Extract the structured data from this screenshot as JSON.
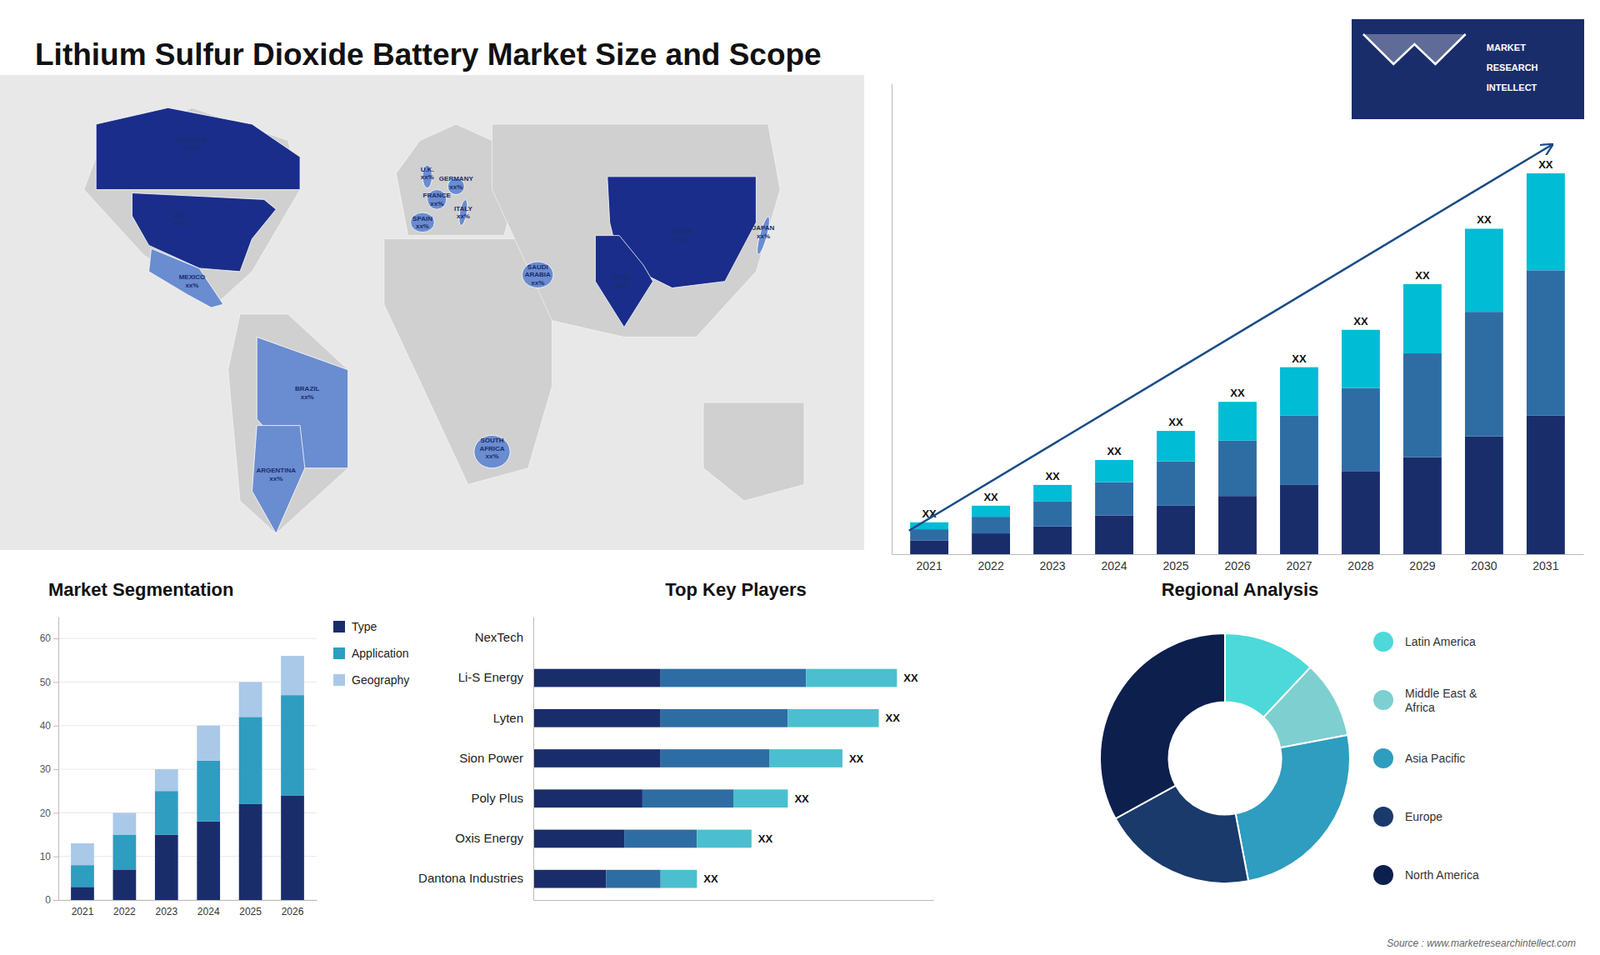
{
  "title": "Lithium Sulfur Dioxide Battery Market Size and Scope",
  "annotations": [
    "Source : www.marketresearchintellect.com",
    "MARKET",
    "RESEARCH",
    "INTELLECT"
  ],
  "chart_data": [
    {
      "type": "map",
      "categories": [
        "CANADA",
        "U.S.",
        "MEXICO",
        "BRAZIL",
        "ARGENTINA",
        "U.K.",
        "FRANCE",
        "SPAIN",
        "GERMANY",
        "ITALY",
        "SAUDI\nARABIA",
        "SOUTH\nAFRICA",
        "CHINA",
        "JAPAN",
        "INDIA"
      ],
      "colors": [
        "#1a2d8a",
        "#1a2d8a",
        "#6a8cd0",
        "#6a8cd0",
        "#6a8cd0",
        "#6a8cd0",
        "#6a8cd0",
        "#6a8cd0",
        "#6a8cd0",
        "#6a8cd0",
        "#6a8cd0",
        "#6a8cd0",
        "#1a2d8a",
        "#6a8cd0",
        "#1a2d8a"
      ],
      "annotations": [
        "xx%",
        "xx%",
        "xx%",
        "xx%",
        "xx%",
        "xx%",
        "xx%",
        "xx%",
        "xx%",
        "xx%",
        "xx%",
        "xx%",
        "xx%",
        "xx%",
        "xx%"
      ]
    },
    {
      "type": "bar",
      "stacked": true,
      "categories": [
        "2021",
        "2022",
        "2023",
        "2024",
        "2025",
        "2026",
        "2027",
        "2028",
        "2029",
        "2030",
        "2031"
      ],
      "series": [
        {
          "color": "#1a2d6b",
          "values": [
            1.0,
            1.5,
            2.0,
            2.8,
            3.5,
            4.2,
            5.0,
            6.0,
            7.0,
            8.5,
            10.0
          ]
        },
        {
          "color": "#2e6da4",
          "values": [
            0.8,
            1.2,
            1.8,
            2.4,
            3.2,
            4.0,
            5.0,
            6.0,
            7.5,
            9.0,
            10.5
          ]
        },
        {
          "color": "#00bcd4",
          "values": [
            0.5,
            0.8,
            1.2,
            1.6,
            2.2,
            2.8,
            3.5,
            4.2,
            5.0,
            6.0,
            7.0
          ]
        }
      ],
      "ylim": [
        0,
        34
      ],
      "tick_labels": "x",
      "annotations": [
        "XX",
        "XX",
        "XX",
        "XX",
        "XX",
        "XX",
        "XX",
        "XX",
        "XX",
        "XX",
        "XX"
      ]
    },
    {
      "type": "bar",
      "title": "Market Segmentation",
      "stacked": true,
      "categories": [
        "2021",
        "2022",
        "2023",
        "2024",
        "2025",
        "2026"
      ],
      "series": [
        {
          "name": "Type",
          "color": "#1a2d6b",
          "values": [
            3,
            7,
            15,
            18,
            22,
            24
          ]
        },
        {
          "name": "Application",
          "color": "#2e9dbf",
          "values": [
            5,
            8,
            10,
            14,
            20,
            23
          ]
        },
        {
          "name": "Geography",
          "color": "#aac8e8",
          "values": [
            5,
            5,
            5,
            8,
            8,
            9
          ]
        }
      ],
      "ylim": [
        0,
        65
      ],
      "yticks": [
        0,
        10,
        20,
        30,
        40,
        50,
        60
      ],
      "grid": true,
      "legend": "right"
    },
    {
      "type": "bar",
      "title": "Top Key Players",
      "orientation": "horizontal",
      "stacked": true,
      "categories": [
        "NexTech",
        "Li-S Energy",
        "Lyten",
        "Sion Power",
        "Poly Plus",
        "Oxis Energy",
        "Dantona Industries"
      ],
      "series": [
        {
          "color": "#1a2d6b",
          "values": [
            0,
            7,
            7,
            7,
            6,
            5,
            4
          ]
        },
        {
          "color": "#2e6da4",
          "values": [
            0,
            8,
            7,
            6,
            5,
            4,
            3
          ]
        },
        {
          "color": "#4bbfcf",
          "values": [
            0,
            5,
            5,
            4,
            3,
            3,
            2
          ]
        }
      ],
      "xlim": [
        0,
        22
      ],
      "tick_labels": "y",
      "annotations": [
        "XX",
        "XX",
        "XX",
        "XX",
        "XX",
        "XX"
      ]
    },
    {
      "type": "donut",
      "title": "Regional Analysis",
      "categories": [
        "Latin America",
        "Middle East &\nAfrica",
        "Asia Pacific",
        "Europe",
        "North America"
      ],
      "values": [
        12,
        10,
        25,
        20,
        33
      ],
      "colors": [
        "#4dd9d9",
        "#7ecfcf",
        "#2e9dbf",
        "#1a3a6b",
        "#0d1f4d"
      ],
      "legend": "right"
    }
  ]
}
